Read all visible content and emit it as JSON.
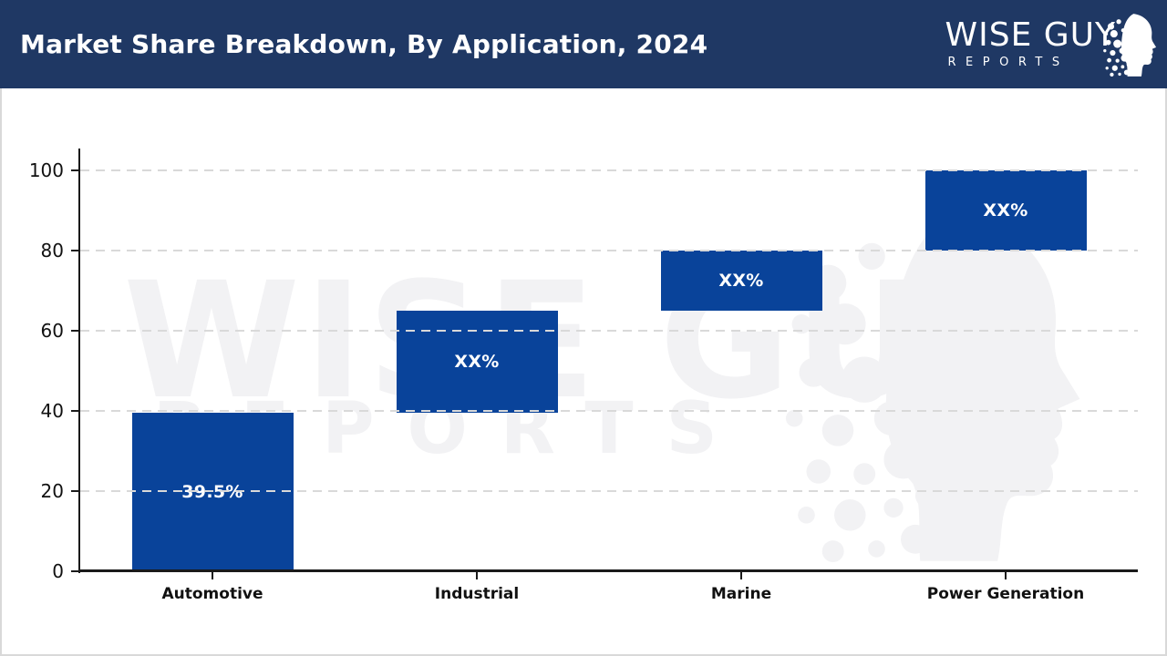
{
  "header": {
    "title": "Market Share Breakdown, By Application, 2024"
  },
  "logo": {
    "line1": "WISE GUY",
    "line2": "REPORTS"
  },
  "watermark": {
    "line1": "WISE GUY",
    "line2": "REPORTS"
  },
  "colors": {
    "header_bg": "#1f3864",
    "bar": "#09439a",
    "grid": "#d9d9d9",
    "axis": "#1a1a1a",
    "watermark": "#f2f2f4"
  },
  "chart_data": {
    "type": "bar",
    "subtype": "waterfall",
    "title": "Market Share Breakdown, By Application, 2024",
    "categories": [
      "Automotive",
      "Industrial",
      "Marine",
      "Power Generation"
    ],
    "series": [
      {
        "name": "Market share (%)",
        "segments": [
          {
            "category": "Automotive",
            "start": 0,
            "end": 39.5,
            "label": "39.5%"
          },
          {
            "category": "Industrial",
            "start": 39.5,
            "end": 65,
            "label": "XX%"
          },
          {
            "category": "Marine",
            "start": 65,
            "end": 80,
            "label": "XX%"
          },
          {
            "category": "Power Generation",
            "start": 80,
            "end": 100,
            "label": "XX%"
          }
        ]
      }
    ],
    "bar_labels": [
      "39.5%",
      "XX%",
      "XX%",
      "XX%"
    ],
    "yticks": [
      0,
      20,
      40,
      60,
      80,
      100
    ],
    "ylim": [
      0,
      105
    ],
    "grid": "horizontal-dashed",
    "legend_position": "none"
  }
}
